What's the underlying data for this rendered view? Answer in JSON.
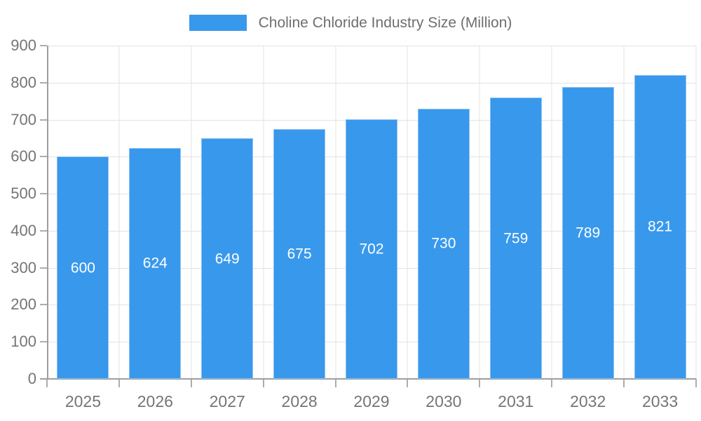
{
  "legend": {
    "label": "Choline Chloride Industry Size (Million)"
  },
  "chart_data": {
    "type": "bar",
    "title": "Choline Chloride Industry Size (Million)",
    "categories": [
      "2025",
      "2026",
      "2027",
      "2028",
      "2029",
      "2030",
      "2031",
      "2032",
      "2033"
    ],
    "values": [
      600,
      624,
      649,
      675,
      702,
      730,
      759,
      789,
      821
    ],
    "series": [
      {
        "name": "Choline Chloride Industry Size (Million)",
        "values": [
          600,
          624,
          649,
          675,
          702,
          730,
          759,
          789,
          821
        ]
      }
    ],
    "xlabel": "",
    "ylabel": "",
    "ylim": [
      0,
      900
    ],
    "yticks": [
      0,
      100,
      200,
      300,
      400,
      500,
      600,
      700,
      800,
      900
    ],
    "grid": true,
    "legend_position": "top-center",
    "value_label_position": "inside-center"
  },
  "colors": {
    "bar_fill": "#3898EC",
    "bar_edge": "#8CC1F2",
    "grid_line": "#E3E3E3",
    "axis_line": "#9E9E9E",
    "tick_mark": "#ADADAD",
    "axis_text": "#757575",
    "legend_text": "#6E6E6E",
    "value_text": "#FFFFFF",
    "background": "#FFFFFF"
  }
}
